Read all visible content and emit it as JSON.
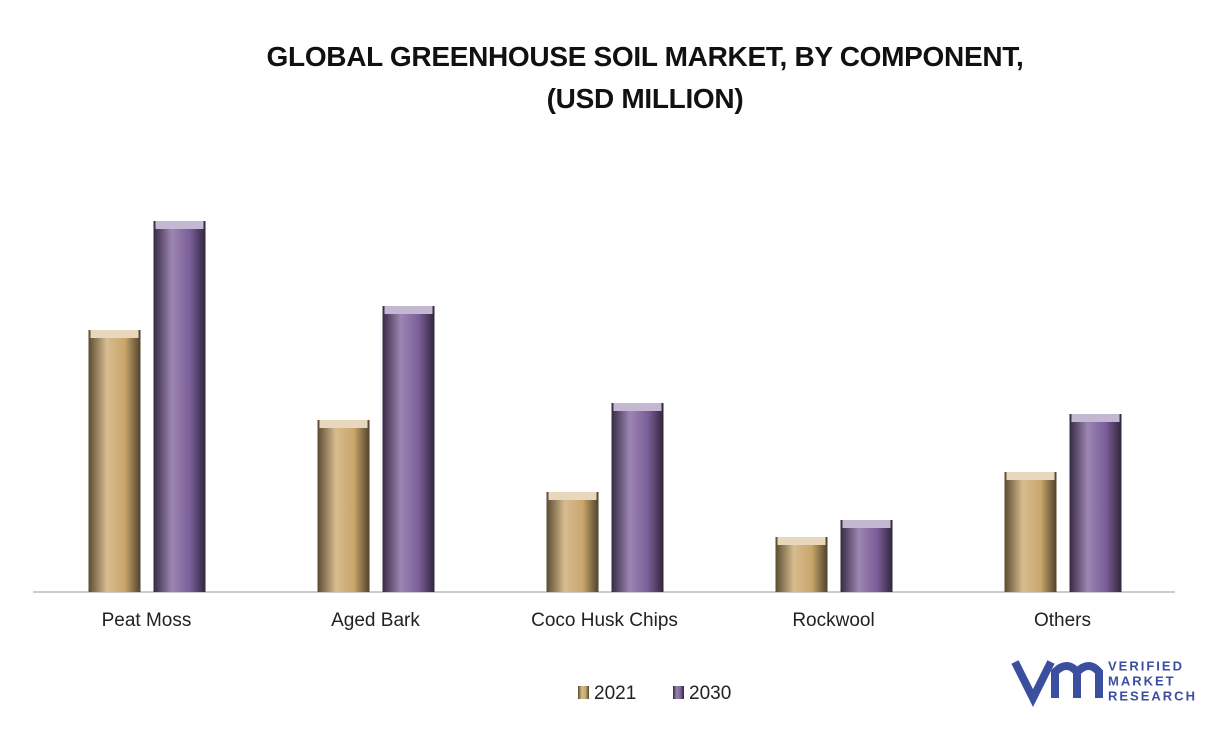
{
  "chart_data": {
    "type": "bar",
    "title": "GLOBAL GREENHOUSE SOIL MARKET, BY COMPONENT, (USD MILLION)",
    "categories": [
      "Peat Moss",
      "Aged Bark",
      "Coco Husk Chips",
      "Rockwool",
      "Others"
    ],
    "series": [
      {
        "name": "2021",
        "color": "#c9a66b",
        "values": [
          262,
          172,
          100,
          55,
          120
        ]
      },
      {
        "name": "2030",
        "color": "#7b5e98",
        "values": [
          371,
          286,
          189,
          72,
          178
        ]
      }
    ],
    "logo": [
      "VERIFIED",
      "MARKET",
      "RESEARCH"
    ]
  }
}
